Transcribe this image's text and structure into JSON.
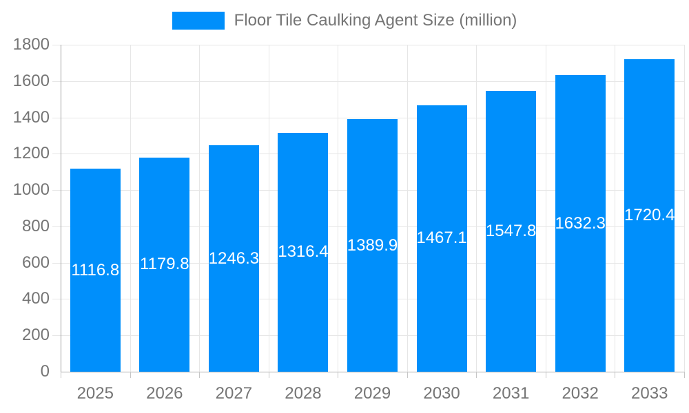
{
  "legend": {
    "label": "Floor Tile Caulking Agent Size (million)"
  },
  "colors": {
    "bar": "#008FFB",
    "axis_text": "#757575",
    "bar_label_text": "#ffffff",
    "gridline": "#e6e6e6",
    "axis_line": "#9e9e9e"
  },
  "chart_data": {
    "type": "bar",
    "title": "Floor Tile Caulking Agent Size (million)",
    "categories": [
      "2025",
      "2026",
      "2027",
      "2028",
      "2029",
      "2030",
      "2031",
      "2032",
      "2033"
    ],
    "values": [
      1116.8,
      1179.8,
      1246.3,
      1316.4,
      1389.9,
      1467.1,
      1547.8,
      1632.3,
      1720.4
    ],
    "bar_labels": [
      "1116.8",
      "1179.8",
      "1246.3",
      "1316.4",
      "1389.9",
      "1467.1",
      "1547.8",
      "1632.3",
      "1720.4"
    ],
    "xlabel": "",
    "ylabel": "",
    "ylim": [
      0,
      1800
    ],
    "ytick_step": 200,
    "ytick_labels": [
      "0",
      "200",
      "400",
      "600",
      "800",
      "1000",
      "1200",
      "1400",
      "1600",
      "1800"
    ],
    "grid": true,
    "legend_position": "top",
    "bar_label_position": "center-inside"
  }
}
